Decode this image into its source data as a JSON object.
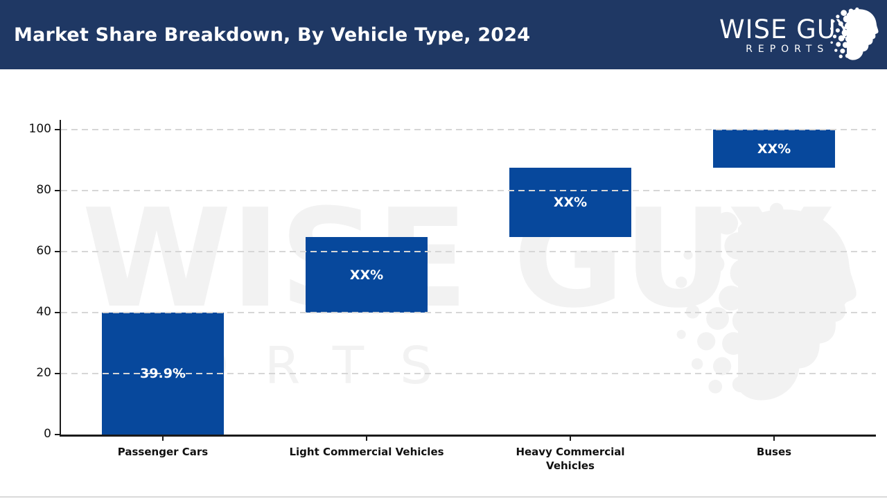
{
  "header": {
    "title": "Market Share Breakdown, By Vehicle Type, 2024",
    "logo": {
      "line1": "WISE GUY",
      "line2": "REPORTS"
    }
  },
  "watermark": {
    "line1": "WISE GUY",
    "line2": "PORTS"
  },
  "colors": {
    "header_bg": "#1f3864",
    "bar": "#07489c",
    "bar_label_text": "#ffffff",
    "grid": "#d6d6d6",
    "axis": "#1a1a1a",
    "watermark": "#f2f2f2",
    "logo_text": "#ffffff"
  },
  "chart_data": {
    "type": "bar",
    "subtype": "waterfall",
    "title": "Market Share Breakdown, By Vehicle Type, 2024",
    "categories": [
      "Passenger Cars",
      "Light Commercial Vehicles",
      "Heavy Commercial Vehicles",
      "Buses"
    ],
    "segments": [
      {
        "category": "Passenger Cars",
        "start": 0,
        "end": 39.9,
        "label": "39.9%"
      },
      {
        "category": "Light Commercial Vehicles",
        "start": 39.9,
        "end": 64.7,
        "label": "XX%"
      },
      {
        "category": "Heavy Commercial Vehicles",
        "start": 64.7,
        "end": 87.5,
        "label": "XX%"
      },
      {
        "category": "Buses",
        "start": 87.5,
        "end": 100,
        "label": "XX%"
      }
    ],
    "xlabel": "",
    "ylabel": "",
    "ylim": [
      0,
      100
    ],
    "yticks": [
      0,
      20,
      40,
      60,
      80,
      100
    ],
    "grid": true,
    "grid_style": "dashed",
    "legend": "none"
  }
}
